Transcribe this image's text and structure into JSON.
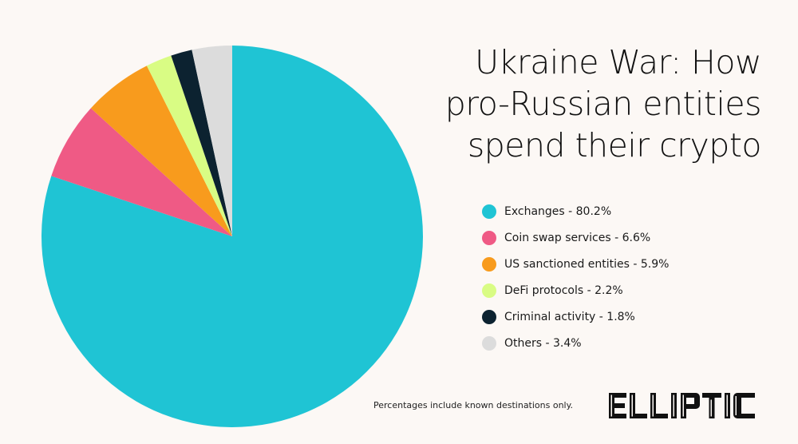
{
  "title_lines": [
    "Ukraine War: How",
    "pro-Russian entities",
    "spend their crypto"
  ],
  "chart_data": {
    "type": "pie",
    "start": "12 o'clock, clockwise",
    "slices": [
      {
        "label": "Exchanges - 80.2%",
        "value": 80.2,
        "color": "#1fc4d4"
      },
      {
        "label": "Coin swap services - 6.6%",
        "value": 6.6,
        "color": "#ef5a85"
      },
      {
        "label": "US sanctioned entities - 5.9%",
        "value": 5.9,
        "color": "#f89b1d"
      },
      {
        "label": "DeFi protocols - 2.2%",
        "value": 2.2,
        "color": "#d9fc84"
      },
      {
        "label": "Criminal activity - 1.8%",
        "value": 1.8,
        "color": "#0c2230"
      },
      {
        "label": "Others - 3.4%",
        "value": 3.4,
        "color": "#dcdcdc"
      }
    ],
    "legend_position": "right"
  },
  "footnote": "Percentages include known destinations only.",
  "logo_text": "ELLIPTIC"
}
